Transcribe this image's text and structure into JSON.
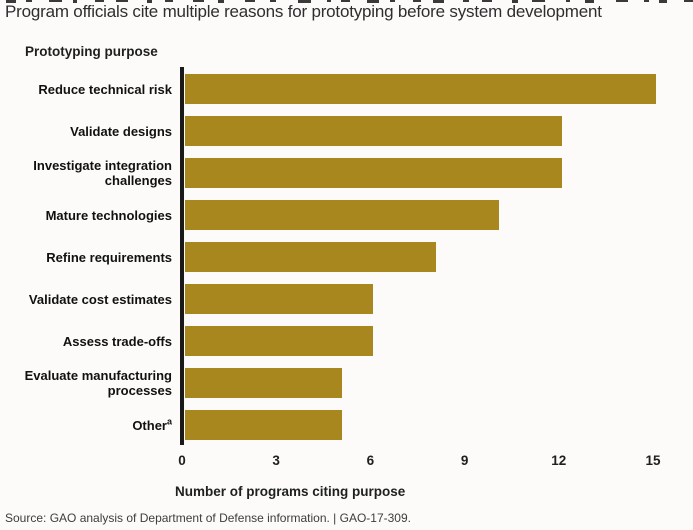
{
  "title": "Program officials cite multiple reasons for prototyping before system development",
  "chart_data": {
    "type": "bar",
    "orientation": "horizontal",
    "axis_title": "Prototyping purpose",
    "categories": [
      "Reduce technical risk",
      "Validate designs",
      "Investigate integration challenges",
      "Mature technologies",
      "Refine requirements",
      "Validate cost estimates",
      "Assess trade-offs",
      "Evaluate manufacturing processes",
      "Other"
    ],
    "values": [
      15,
      12,
      12,
      10,
      8,
      6,
      6,
      5,
      5
    ],
    "category_superscripts": {
      "Other": "a"
    },
    "xlabel": "Number of programs citing purpose",
    "xticks": [
      0,
      3,
      6,
      9,
      12,
      15
    ],
    "xlim": [
      0,
      15
    ],
    "grid": false,
    "legend": false,
    "bar_color": "#A8871E",
    "axis_color": "#1A1A1A"
  },
  "footer": {
    "source_line": "Source: GAO analysis of Department of Defense information.  |  GAO-17-309."
  }
}
